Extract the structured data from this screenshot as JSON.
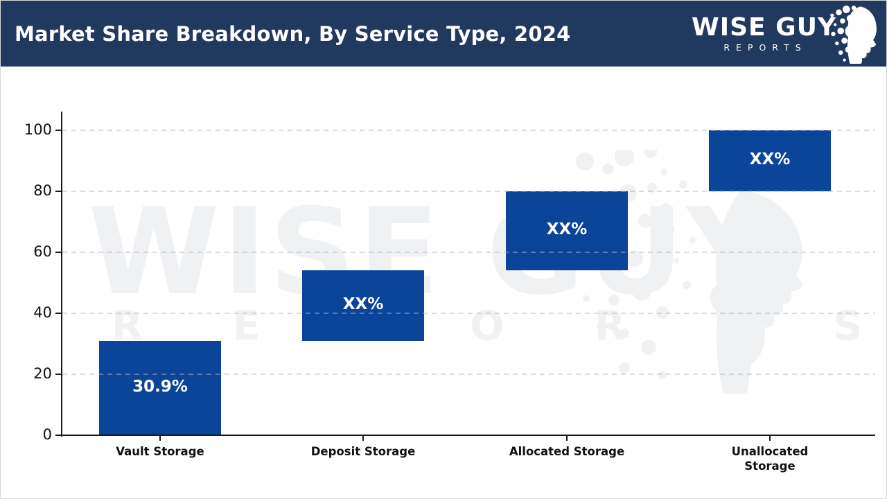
{
  "header": {
    "title": "Market Share Breakdown, By Service Type, 2024",
    "logo": {
      "main": "WISE GUY",
      "sub": "REPORTS"
    }
  },
  "watermark": {
    "main": "WISE GUY",
    "sub": "R E P O R T S"
  },
  "colors": {
    "header_bg": "#20395f",
    "bar": "#0b4599",
    "watermark": "#f0f1f3",
    "grid": "#d9d9d9",
    "axis": "#1a1a1a",
    "bar_label": "#ffffff"
  },
  "chart_data": {
    "type": "bar",
    "subtype": "waterfall",
    "title": "Market Share Breakdown, By Service Type, 2024",
    "categories": [
      "Vault Storage",
      "Deposit Storage",
      "Allocated Storage",
      "Unallocated\nStorage"
    ],
    "segments": [
      {
        "category": "Vault Storage",
        "start": 0,
        "end": 30.9,
        "label": "30.9%"
      },
      {
        "category": "Deposit Storage",
        "start": 30.9,
        "end": 54.2,
        "label": "XX%"
      },
      {
        "category": "Allocated Storage",
        "start": 54.2,
        "end": 80.0,
        "label": "XX%"
      },
      {
        "category": "Unallocated Storage",
        "start": 80.0,
        "end": 100,
        "label": "XX%"
      }
    ],
    "yticks": [
      0,
      20,
      40,
      60,
      80,
      100
    ],
    "ylim": [
      0,
      105
    ],
    "xlabel": "",
    "ylabel": "",
    "grid": "dashed-horizontal",
    "legend": "none"
  }
}
